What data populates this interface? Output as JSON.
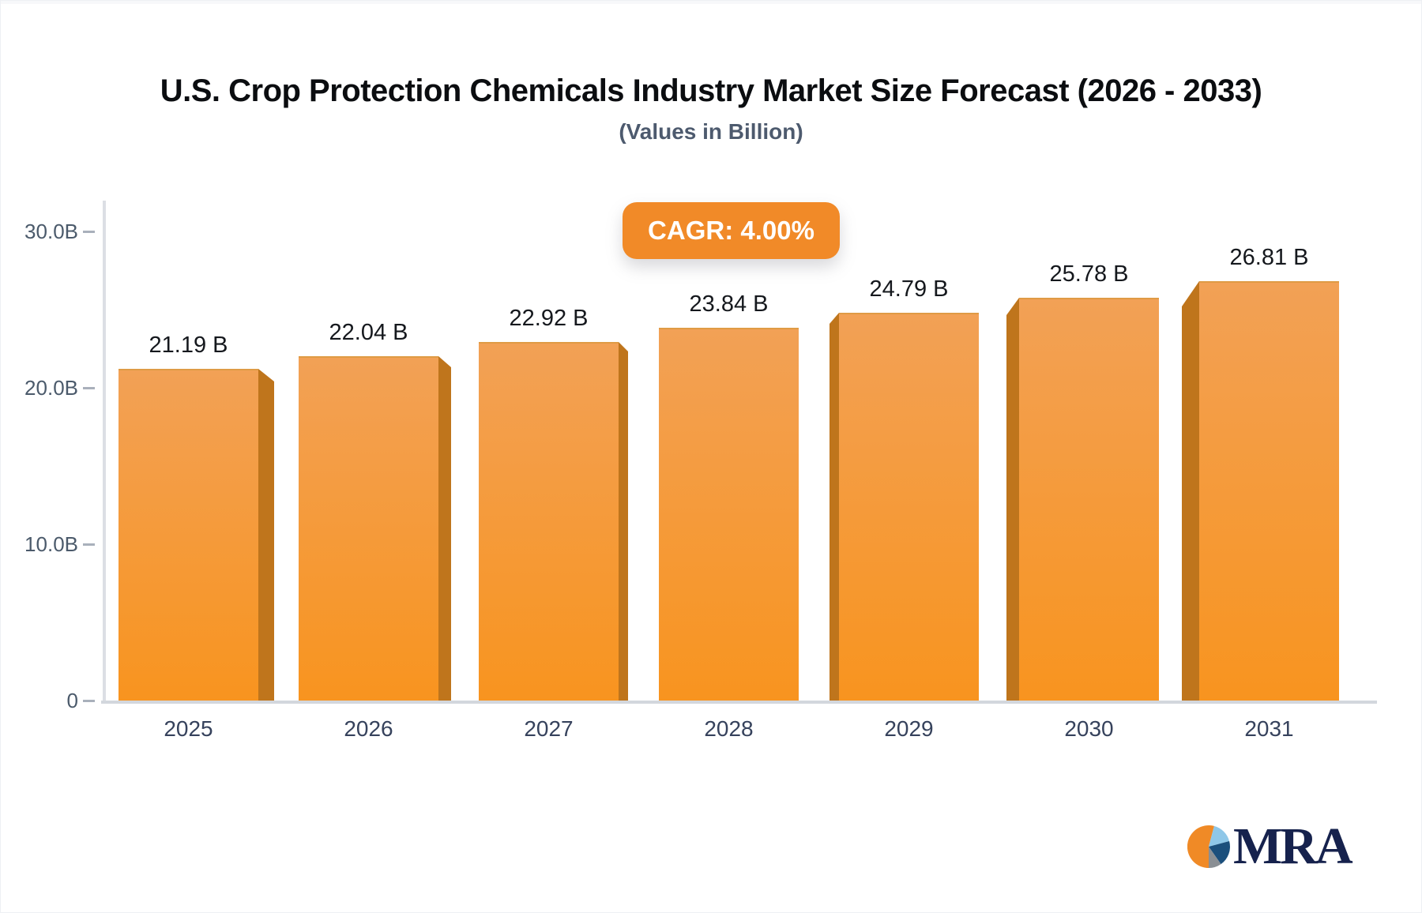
{
  "header": {
    "title": "U.S. Crop Protection Chemicals Industry Market Size Forecast (2026 - 2033)",
    "subtitle": "(Values in Billion)",
    "cagr_label": "CAGR: 4.00%"
  },
  "chart_data": {
    "type": "bar",
    "title": "U.S. Crop Protection Chemicals Industry Market Size Forecast (2026 - 2033)",
    "subtitle": "(Values in Billion)",
    "cagr": "4.00%",
    "unit": "Billion USD",
    "categories": [
      "2025",
      "2026",
      "2027",
      "2028",
      "2029",
      "2030",
      "2031"
    ],
    "values": [
      21.19,
      22.04,
      22.92,
      23.84,
      24.79,
      25.78,
      26.81
    ],
    "value_labels": [
      "21.19 B",
      "22.04 B",
      "22.92 B",
      "23.84 B",
      "24.79 B",
      "25.78 B",
      "26.81 B"
    ],
    "ylim": [
      0,
      30
    ],
    "y_ticks": [
      {
        "value": 30,
        "label": "30.0B"
      },
      {
        "value": 20,
        "label": "20.0B"
      },
      {
        "value": 10,
        "label": "10.0B"
      },
      {
        "value": 0,
        "label": "0"
      }
    ],
    "grid": false,
    "legend": false,
    "style": "3d-column",
    "colors": {
      "bar_face_top": "#f2a156",
      "bar_face_bottom": "#f8941f",
      "bar_side": "#bf751c",
      "bar_top_edge": "#df9b45",
      "badge_background": "#f18a28",
      "axis": "#d3d7dd",
      "tick_text": "#4b5a6b",
      "category_text": "#36425c",
      "value_text": "#15181d"
    }
  },
  "logo": {
    "text": "MRA",
    "colors": {
      "pie_orange": "#f08a26",
      "pie_light_blue": "#8fc7e8",
      "pie_navy": "#1b4f7c",
      "pie_gray": "#8a8f94",
      "text": "#16224d"
    }
  }
}
